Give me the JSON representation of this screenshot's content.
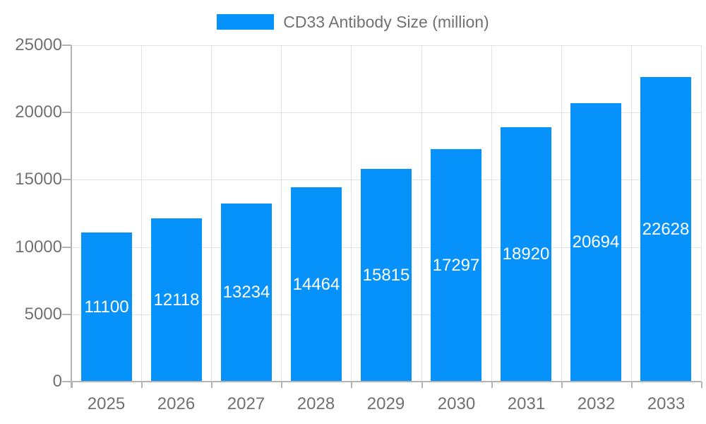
{
  "chart_data": {
    "type": "bar",
    "title": "CD33 Antibody Size (million)",
    "categories": [
      "2025",
      "2026",
      "2027",
      "2028",
      "2029",
      "2030",
      "2031",
      "2032",
      "2033"
    ],
    "values": [
      11100,
      12118,
      13234,
      14464,
      15815,
      17297,
      18920,
      20694,
      22628
    ],
    "xlabel": "",
    "ylabel": "",
    "ylim": [
      0,
      25000
    ],
    "yticks": [
      0,
      5000,
      10000,
      15000,
      20000,
      25000
    ],
    "grid": true,
    "legend_position": "top-center",
    "bar_color": "#0692fa",
    "value_label_color": "#ffffff",
    "axis_color": "#b3b3b3",
    "gridline_color": "#e3e3e3",
    "text_color": "#717171"
  }
}
